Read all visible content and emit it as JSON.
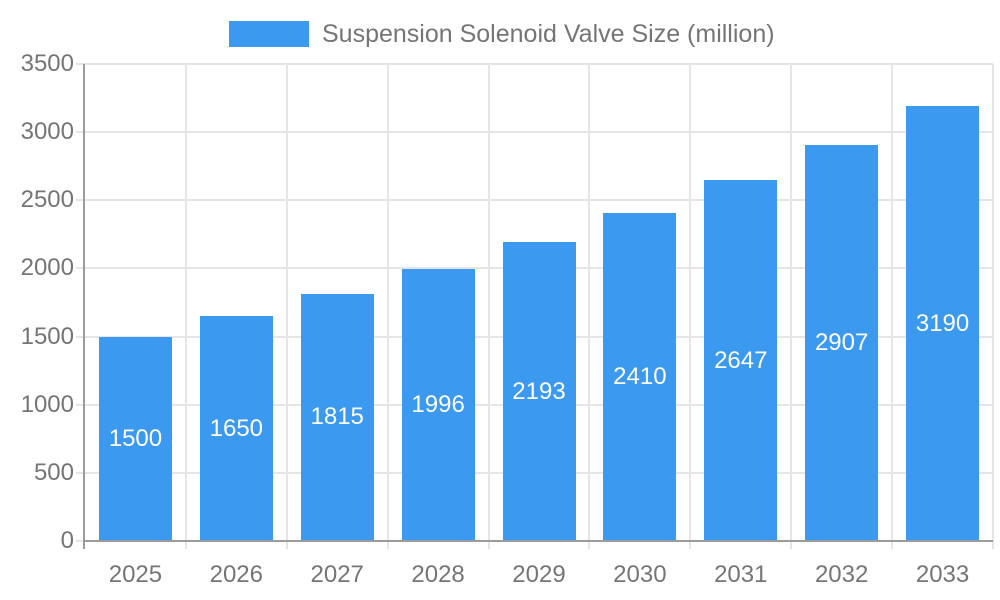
{
  "chart_data": {
    "type": "bar",
    "title": "Suspension Solenoid Valve Size (million)",
    "categories": [
      "2025",
      "2026",
      "2027",
      "2028",
      "2029",
      "2030",
      "2031",
      "2032",
      "2033"
    ],
    "values": [
      1500,
      1650,
      1815,
      1996,
      2193,
      2410,
      2647,
      2907,
      3190
    ],
    "series": [
      {
        "name": "Suspension Solenoid Valve Size (million)",
        "values": [
          1500,
          1650,
          1815,
          1996,
          2193,
          2410,
          2647,
          2907,
          3190
        ]
      }
    ],
    "xlabel": "",
    "ylabel": "",
    "ylim": [
      0,
      3500
    ],
    "yticks": [
      0,
      500,
      1000,
      1500,
      2000,
      2500,
      3000,
      3500
    ],
    "grid": true,
    "legend_position": "top",
    "bar_color": "#3b99f0",
    "value_label_color": "#ffffff",
    "axis_text_color": "#757575",
    "grid_color": "#e6e6e6",
    "axis_line_color": "#9b9b9b"
  },
  "legend": {
    "label": "Suspension Solenoid Valve Size (million)"
  }
}
